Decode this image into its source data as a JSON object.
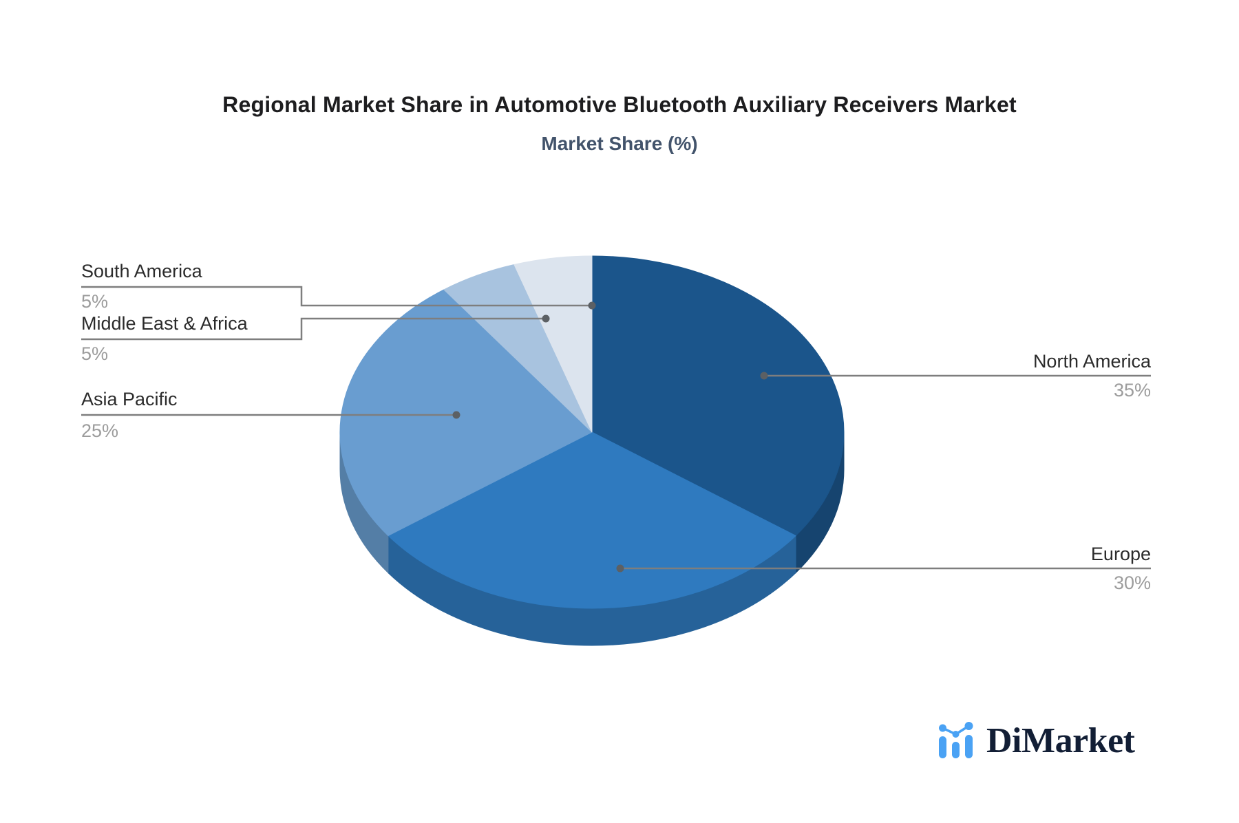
{
  "header": {
    "title": "Regional Market Share in Automotive Bluetooth Auxiliary Receivers Market",
    "subtitle": "Market Share (%)"
  },
  "chart_data": {
    "type": "pie",
    "effect": "3d-depth",
    "title": "Regional Market Share in Automotive Bluetooth Auxiliary Receivers Market",
    "subtitle": "Market Share (%)",
    "start_angle_deg": 0,
    "direction": "clockwise",
    "categories": [
      "North America",
      "Europe",
      "Asia Pacific",
      "Middle East & Africa",
      "South America"
    ],
    "values": [
      35,
      30,
      25,
      5,
      5
    ],
    "value_labels": [
      "35%",
      "30%",
      "25%",
      "5%",
      "5%"
    ],
    "colors": [
      "#1b558b",
      "#2f7abf",
      "#699dd0",
      "#a8c3df",
      "#dce4ee"
    ],
    "legend_position": "callout-labels",
    "grid": false,
    "label_color": "#2b2b2b",
    "value_color": "#9c9c9c",
    "leader_line_color": "#7e7e7e",
    "leader_dot_color": "#5c6064"
  },
  "branding": {
    "logo_text": "DiMarket",
    "logo_icon": "bar-chart-trend-icon",
    "logo_icon_color": "#4aa2f4",
    "logo_text_color": "#121e35"
  }
}
